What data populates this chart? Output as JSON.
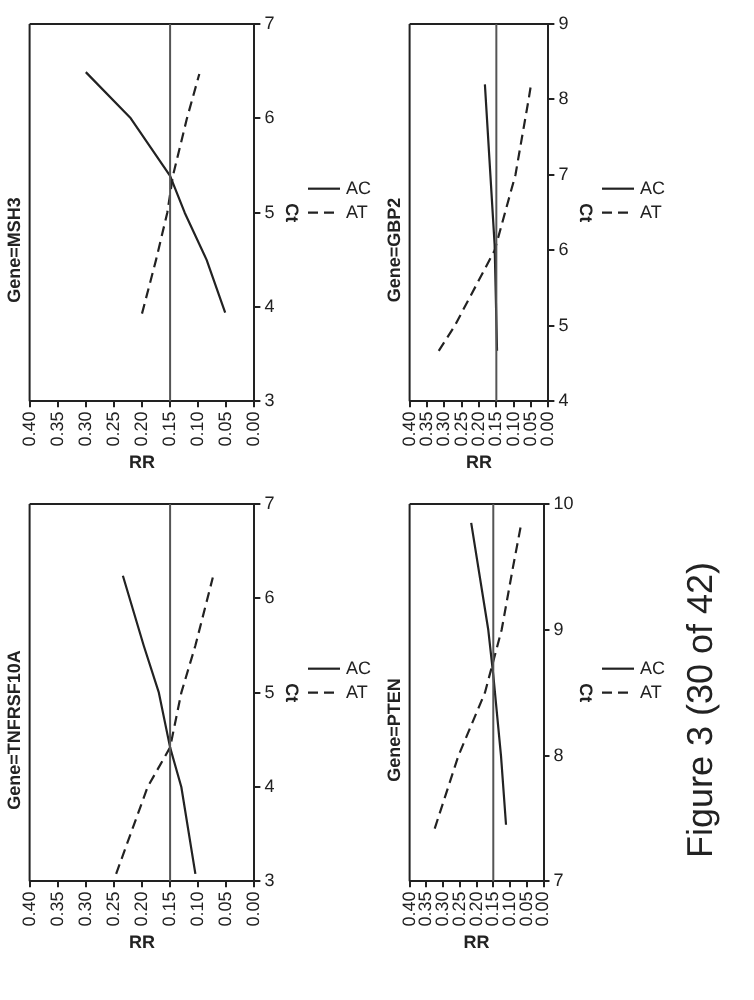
{
  "chart_data": [
    {
      "type": "line",
      "title": "Gene=TNFRSF10A",
      "xlabel": "RR",
      "ylabel": "Ct",
      "legend": "right",
      "marker": "none",
      "grid": false,
      "xlim": [
        0.4,
        0
      ],
      "xticks": [
        {
          "value": 0.4,
          "label": "0.40"
        },
        {
          "value": 0.35,
          "label": "0.35"
        },
        {
          "value": 0.3,
          "label": "0.30"
        },
        {
          "value": 0.25,
          "label": "0.25"
        },
        {
          "value": 0.2,
          "label": "0.20"
        },
        {
          "value": 0.15,
          "label": "0.15"
        },
        {
          "value": 0.1,
          "label": "0.10"
        },
        {
          "value": 0.05,
          "label": "0.05"
        },
        {
          "value": 0,
          "label": "0.00"
        }
      ],
      "ylim": [
        3,
        7
      ],
      "yticks": [
        3,
        4,
        5,
        6,
        7
      ],
      "ref_lines": [
        {
          "axis": "x",
          "value": 0.15,
          "color": "#555555"
        }
      ],
      "series": [
        {
          "name": "AC",
          "color": "#222222",
          "line_style": "solid",
          "x": [
            0.105,
            0.13,
            0.15,
            0.17,
            0.197,
            0.234
          ],
          "values": [
            3.08,
            4,
            4.42,
            5,
            5.5,
            6.24
          ]
        },
        {
          "name": "AT",
          "color": "#222222",
          "line_style": "dashed",
          "x": [
            0.246,
            0.19,
            0.15,
            0.13,
            0.105,
            0.074
          ],
          "values": [
            3.08,
            4,
            4.42,
            5,
            5.5,
            6.22
          ]
        }
      ]
    },
    {
      "type": "line",
      "title": "Gene=MSH3",
      "xlabel": "RR",
      "ylabel": "Ct",
      "legend": "right",
      "marker": "none",
      "grid": false,
      "xlim": [
        0.4,
        0
      ],
      "xticks": [
        {
          "value": 0.4,
          "label": "0.40"
        },
        {
          "value": 0.35,
          "label": "0.35"
        },
        {
          "value": 0.3,
          "label": "0.30"
        },
        {
          "value": 0.25,
          "label": "0.25"
        },
        {
          "value": 0.2,
          "label": "0.20"
        },
        {
          "value": 0.15,
          "label": "0.15"
        },
        {
          "value": 0.1,
          "label": "0.10"
        },
        {
          "value": 0.05,
          "label": "0.05"
        },
        {
          "value": 0,
          "label": "0.00"
        }
      ],
      "ylim": [
        3,
        7
      ],
      "yticks": [
        3,
        4,
        5,
        6,
        7
      ],
      "ref_lines": [
        {
          "axis": "x",
          "value": 0.15,
          "color": "#555555"
        }
      ],
      "series": [
        {
          "name": "AC",
          "color": "#222222",
          "line_style": "solid",
          "x": [
            0.052,
            0.085,
            0.124,
            0.15,
            0.22,
            0.3
          ],
          "values": [
            3.94,
            4.5,
            5,
            5.39,
            6,
            6.49
          ]
        },
        {
          "name": "AT",
          "color": "#222222",
          "line_style": "dashed",
          "x": [
            0.2,
            0.175,
            0.155,
            0.145,
            0.12,
            0.098
          ],
          "values": [
            3.93,
            4.5,
            5,
            5.39,
            6,
            6.47
          ]
        }
      ]
    },
    {
      "type": "line",
      "title": "Gene=PTEN",
      "xlabel": "RR",
      "ylabel": "Ct",
      "legend": "right",
      "marker": "none",
      "grid": false,
      "xlim": [
        0.4,
        0
      ],
      "xticks": [
        {
          "value": 0.4,
          "label": "0.40"
        },
        {
          "value": 0.35,
          "label": "0.35"
        },
        {
          "value": 0.3,
          "label": "0.30"
        },
        {
          "value": 0.25,
          "label": "0.25"
        },
        {
          "value": 0.2,
          "label": "0.20"
        },
        {
          "value": 0.15,
          "label": "0.15"
        },
        {
          "value": 0.1,
          "label": "0.10"
        },
        {
          "value": 0.05,
          "label": "0.05"
        },
        {
          "value": 0,
          "label": "0.00"
        }
      ],
      "ylim": [
        7,
        10
      ],
      "yticks": [
        7,
        8,
        9,
        10
      ],
      "ref_lines": [
        {
          "axis": "x",
          "value": 0.15,
          "color": "#555555"
        }
      ],
      "annotations": [
        "Figure 3 (30 of 42)"
      ],
      "series": [
        {
          "name": "AC",
          "color": "#222222",
          "line_style": "solid",
          "x": [
            0.112,
            0.127,
            0.15,
            0.165,
            0.216
          ],
          "values": [
            7.45,
            8,
            8.64,
            9,
            9.85
          ]
        },
        {
          "name": "AT",
          "color": "#222222",
          "line_style": "dashed",
          "x": [
            0.325,
            0.254,
            0.175,
            0.125,
            0.091,
            0.066
          ],
          "values": [
            7.42,
            8,
            8.5,
            9,
            9.5,
            9.85
          ]
        }
      ]
    },
    {
      "type": "line",
      "title": "Gene=GBP2",
      "xlabel": "RR",
      "ylabel": "Ct",
      "legend": "right",
      "marker": "none",
      "grid": false,
      "xlim": [
        0.4,
        0
      ],
      "xticks": [
        {
          "value": 0.4,
          "label": "0.40"
        },
        {
          "value": 0.35,
          "label": "0.35"
        },
        {
          "value": 0.3,
          "label": "0.30"
        },
        {
          "value": 0.25,
          "label": "0.25"
        },
        {
          "value": 0.2,
          "label": "0.20"
        },
        {
          "value": 0.15,
          "label": "0.15"
        },
        {
          "value": 0.1,
          "label": "0.10"
        },
        {
          "value": 0.05,
          "label": "0.05"
        },
        {
          "value": 0,
          "label": "0.00"
        }
      ],
      "ylim": [
        4,
        9
      ],
      "yticks": [
        4,
        5,
        6,
        7,
        8,
        9
      ],
      "ref_lines": [
        {
          "axis": "x",
          "value": 0.15,
          "color": "#555555"
        }
      ],
      "series": [
        {
          "name": "AC",
          "color": "#222222",
          "line_style": "solid",
          "x": [
            0.148,
            0.155,
            0.183
          ],
          "values": [
            4.67,
            6.08,
            8.2
          ]
        },
        {
          "name": "AT",
          "color": "#222222",
          "line_style": "dashed",
          "x": [
            0.316,
            0.27,
            0.155,
            0.095,
            0.057,
            0.05
          ],
          "values": [
            4.67,
            5,
            6,
            7,
            8,
            8.2
          ]
        }
      ]
    }
  ]
}
